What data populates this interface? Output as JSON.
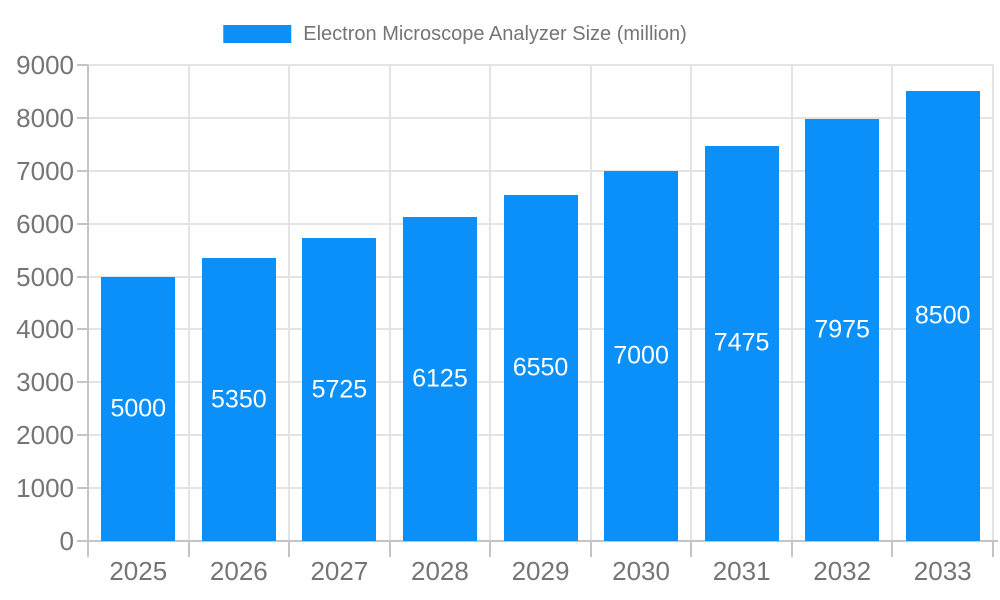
{
  "page": {
    "background": "#ffffff"
  },
  "legend": {
    "label": "Electron Microscope Analyzer Size (million)",
    "swatch_color": "#0a90f8",
    "text_color": "#757575",
    "position": "top-center"
  },
  "chart_data": {
    "type": "bar",
    "title": "Electron Microscope Analyzer Size (million)",
    "series_name": "Electron Microscope Analyzer Size (million)",
    "categories": [
      "2025",
      "2026",
      "2027",
      "2028",
      "2029",
      "2030",
      "2031",
      "2032",
      "2033"
    ],
    "values": [
      5000,
      5350,
      5725,
      6125,
      6550,
      7000,
      7475,
      7975,
      8500
    ],
    "value_labels": [
      "5000",
      "5350",
      "5725",
      "6125",
      "6550",
      "7000",
      "7475",
      "7975",
      "8500"
    ],
    "value_label_position": "inside-center",
    "value_label_color": "#ffffff",
    "xlabel": "",
    "ylabel": "",
    "ylim": [
      0,
      9000
    ],
    "ytick_interval": 1000,
    "ytick_labels": [
      "0",
      "1000",
      "2000",
      "3000",
      "4000",
      "5000",
      "6000",
      "7000",
      "8000",
      "9000"
    ],
    "grid": "both",
    "grid_color": "#e4e4e4",
    "axis_line_color": "#c4c4c4",
    "axis_text_color": "#757575",
    "bar_color": "#0a90f8",
    "legend_position": "top"
  }
}
